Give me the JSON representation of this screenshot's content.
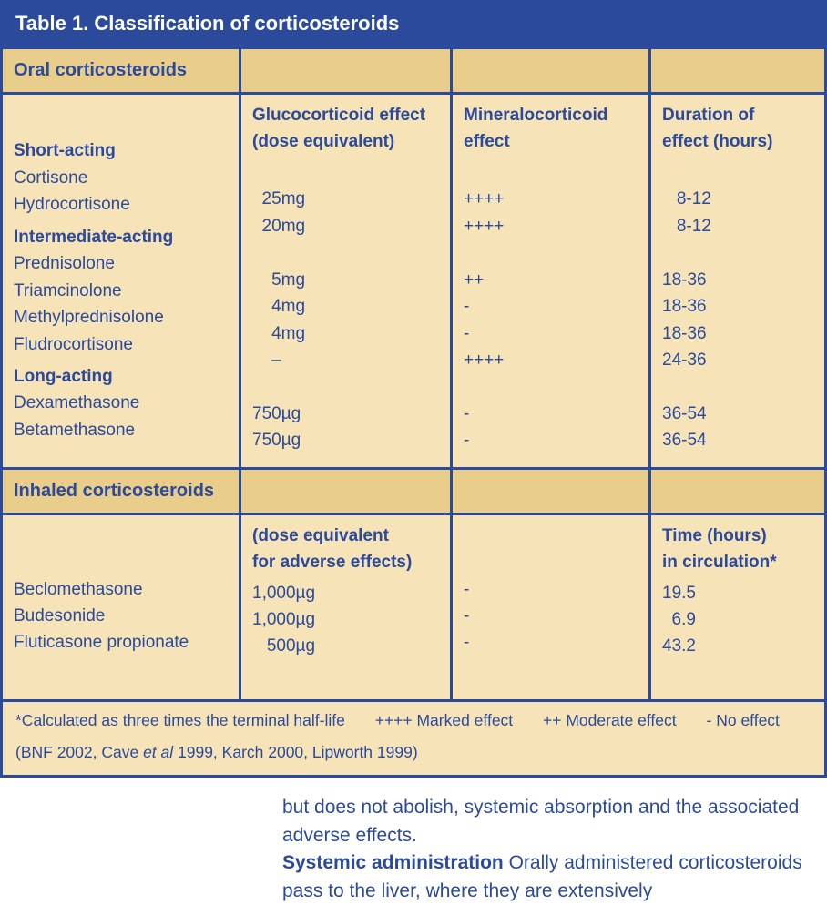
{
  "title": "Table 1. Classification of corticosteroids",
  "section1": {
    "header": "Oral corticosteroids",
    "col1_header": "",
    "col2_header": "Glucocorticoid effect\n(dose equivalent)",
    "col3_header": "Mineralocorticoid\neffect",
    "col4_header": "Duration of\neffect (hours)",
    "groups": [
      {
        "label": "Short-acting",
        "rows": [
          {
            "name": "Cortisone",
            "dose": "  25mg",
            "min": "++++",
            "dur": "   8-12"
          },
          {
            "name": "Hydrocortisone",
            "dose": "  20mg",
            "min": "++++",
            "dur": "   8-12"
          }
        ]
      },
      {
        "label": "Intermediate-acting",
        "rows": [
          {
            "name": "Prednisolone",
            "dose": "    5mg",
            "min": "++",
            "dur": "18-36"
          },
          {
            "name": "Triamcinolone",
            "dose": "    4mg",
            "min": "-",
            "dur": "18-36"
          },
          {
            "name": "Methylprednisolone",
            "dose": "    4mg",
            "min": "-",
            "dur": "18-36"
          },
          {
            "name": "Fludrocortisone",
            "dose": "    –",
            "min": "++++",
            "dur": "24-36"
          }
        ]
      },
      {
        "label": "Long-acting",
        "rows": [
          {
            "name": "Dexamethasone",
            "dose": "750µg",
            "min": "-",
            "dur": "36-54"
          },
          {
            "name": "Betamethasone",
            "dose": "750µg",
            "min": "-",
            "dur": "36-54"
          }
        ]
      }
    ]
  },
  "section2": {
    "header": "Inhaled corticosteroids",
    "col2_header": "(dose equivalent\nfor adverse effects)",
    "col4_header": "Time (hours)\nin circulation*",
    "rows": [
      {
        "name": "Beclomethasone",
        "dose": "1,000µg",
        "min": "-",
        "dur": "19.5"
      },
      {
        "name": "Budesonide",
        "dose": "1,000µg",
        "min": "-",
        "dur": "  6.9"
      },
      {
        "name": "Fluticasone propionate",
        "dose": "   500µg",
        "min": "-",
        "dur": "43.2"
      }
    ]
  },
  "legend": {
    "calc": "*Calculated as three times the terminal half-life",
    "k1": "++++ Marked effect",
    "k2": "++ Moderate effect",
    "k3": "- No effect"
  },
  "refs": "(BNF 2002, Cave et al 1999, Karch 2000, Lipworth 1999)",
  "paragraph": {
    "t1": "but does not abolish, systemic absorption and the associated adverse effects.",
    "lead": "Systemic administration",
    "t2": " Orally administered cortico­steroids pass to the liver, where they are extensively"
  },
  "colors": {
    "border": "#2b4a9b",
    "title_bg": "#2b4a9b",
    "title_fg": "#ffffff",
    "section_bg": "#e9cd8a",
    "body_bg": "#f6e3b8",
    "text": "#2b4a9b"
  }
}
